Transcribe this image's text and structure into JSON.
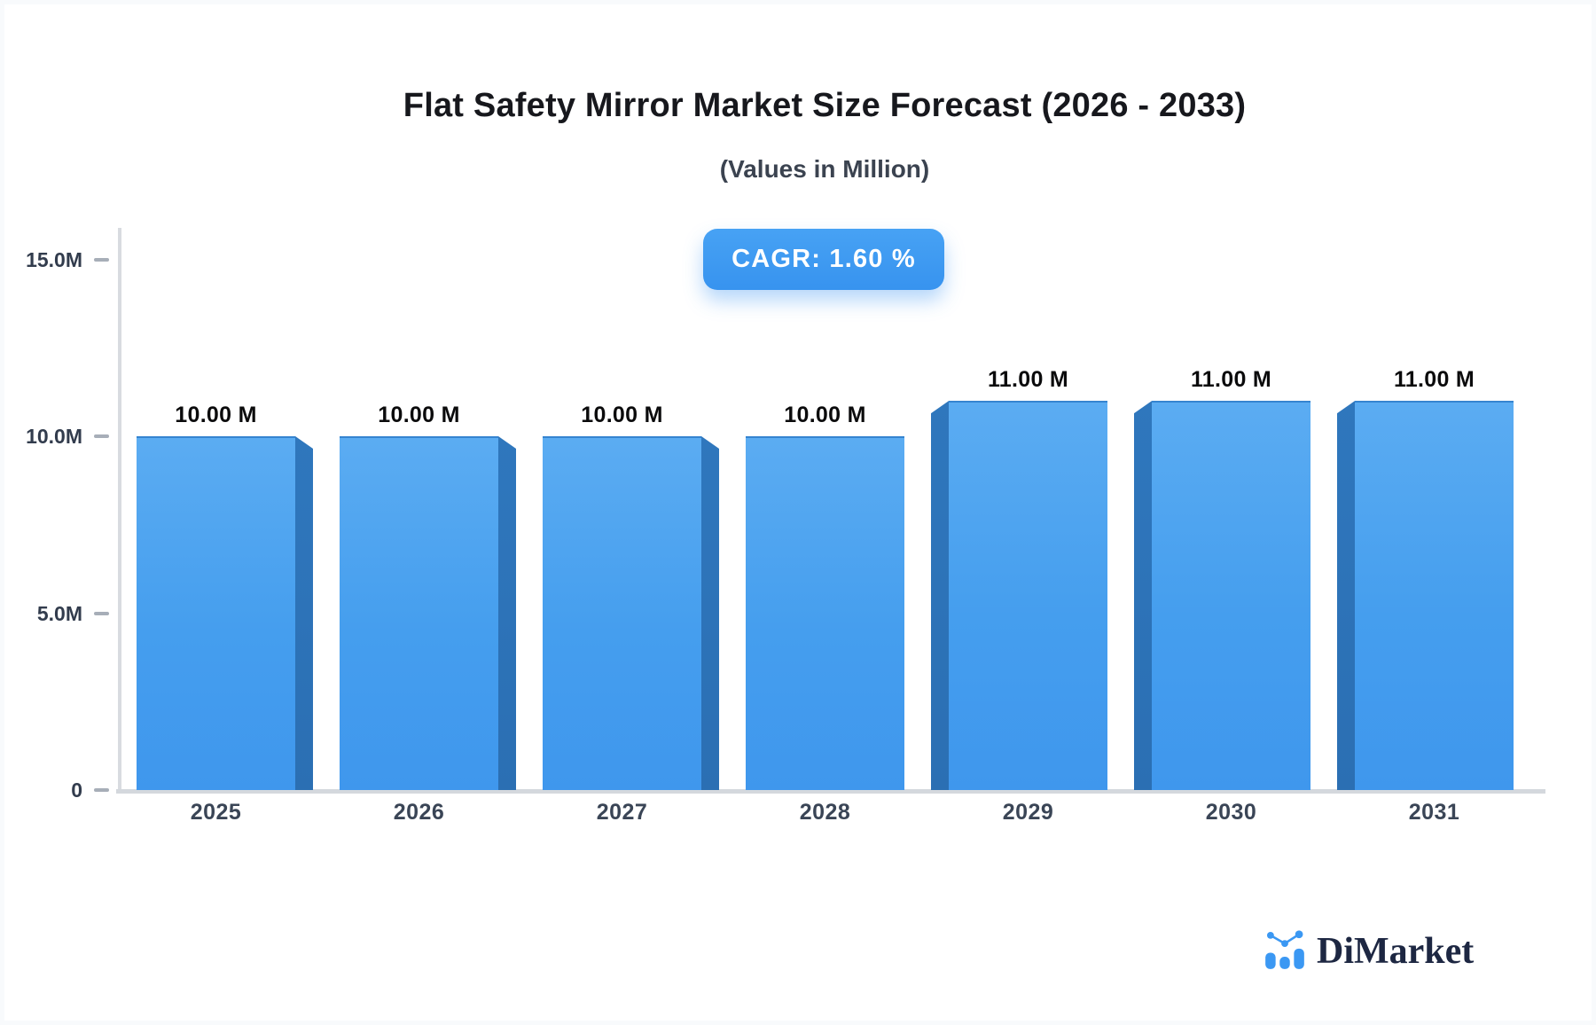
{
  "header": {
    "title": "Flat Safety Mirror Market Size Forecast (2026 - 2033)",
    "subtitle": "(Values in Million)",
    "cagr_label": "CAGR: 1.60 %"
  },
  "chart_data": {
    "type": "bar",
    "title": "Flat Safety Mirror Market Size Forecast (2026 - 2033)",
    "subtitle": "(Values in Million)",
    "unit": "Million",
    "cagr_percent": 1.6,
    "categories": [
      "2025",
      "2026",
      "2027",
      "2028",
      "2029",
      "2030",
      "2031"
    ],
    "values": [
      10.0,
      10.0,
      10.0,
      10.0,
      11.0,
      11.0,
      11.0
    ],
    "bar_value_labels": [
      "10.00 M",
      "10.00 M",
      "10.00 M",
      "10.00 M",
      "11.00 M",
      "11.00 M",
      "11.00 M"
    ],
    "xlabel": "",
    "ylabel": "",
    "ylim": [
      0,
      15
    ],
    "yticks": [
      {
        "value": 0,
        "label": "0"
      },
      {
        "value": 5,
        "label": "5.0M"
      },
      {
        "value": 10,
        "label": "10.0M"
      },
      {
        "value": 15,
        "label": "15.0M"
      }
    ],
    "grid": false,
    "legend": false,
    "bar_style": "3d-extruded"
  },
  "colors": {
    "bar_face_top": "#5bacf2",
    "bar_face_mid": "#459eee",
    "bar_face_bottom": "#3f97ed",
    "bar_side_top": "#2f77bd",
    "bar_side_bottom": "#2b6fb3",
    "badge_top": "#47a2f4",
    "badge_bottom": "#3793ef",
    "axis_gray": "#d8dbe0",
    "brand_blue": "#3b98f3",
    "brand_navy": "#1d2742"
  },
  "footer": {
    "logo_text": "DiMarket"
  }
}
